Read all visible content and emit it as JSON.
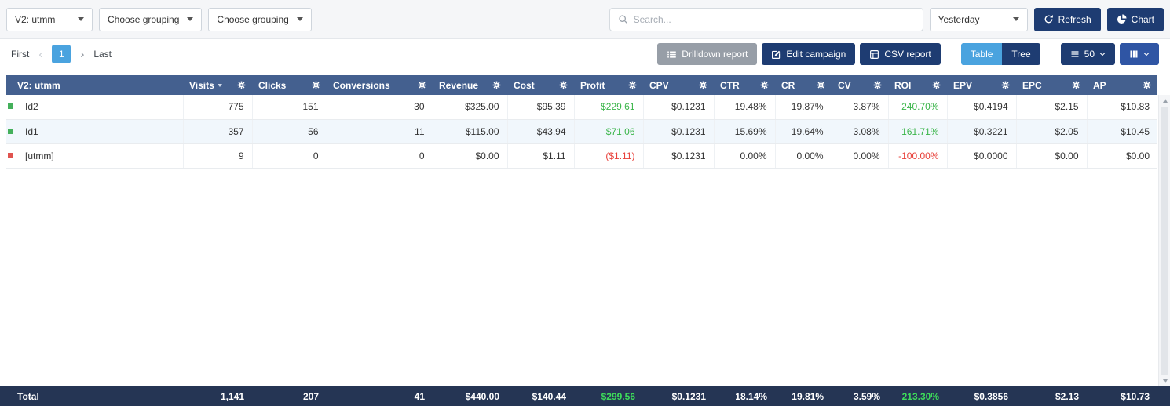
{
  "colors": {
    "header_bg": "#44608f",
    "total_bg": "#253554",
    "navy_button": "#1e3c72",
    "active_blue": "#4aa3df",
    "columns_button": "#2f55a4",
    "positive_green": "#3bb54a",
    "negative_red": "#e8403a",
    "total_green": "#3ddc5a",
    "row_indicator_green": "#44b05b",
    "row_indicator_red": "#e0534f"
  },
  "icons": {
    "search": "magnifier",
    "refresh": "circular-arrow",
    "chart": "pie-chart",
    "drilldown": "list",
    "edit": "pencil-square",
    "csv": "spreadsheet",
    "page_size": "hamburger",
    "columns": "vertical-bars",
    "gear": "gear",
    "sort": "caret-down",
    "select_caret": "caret-down"
  },
  "toolbar": {
    "campaign_select": "V2: utmm",
    "grouping_select_1": "Choose grouping",
    "grouping_select_2": "Choose grouping",
    "search_placeholder": "Search...",
    "date_select": "Yesterday",
    "refresh_label": "Refresh",
    "chart_label": "Chart"
  },
  "pagination": {
    "first": "First",
    "page": "1",
    "last": "Last"
  },
  "actions": {
    "drilldown_label": "Drilldown report",
    "edit_campaign_label": "Edit campaign",
    "csv_label": "CSV report",
    "table_label": "Table",
    "tree_label": "Tree",
    "page_size": "50"
  },
  "table": {
    "name_header": "V2: utmm",
    "profit_col_index": 5,
    "roi_col_index": 10,
    "columns": [
      {
        "label": "Visits",
        "sorted": true
      },
      {
        "label": "Clicks"
      },
      {
        "label": "Conversions"
      },
      {
        "label": "Revenue"
      },
      {
        "label": "Cost"
      },
      {
        "label": "Profit"
      },
      {
        "label": "CPV"
      },
      {
        "label": "CTR"
      },
      {
        "label": "CR"
      },
      {
        "label": "CV"
      },
      {
        "label": "ROI"
      },
      {
        "label": "EPV"
      },
      {
        "label": "EPC"
      },
      {
        "label": "AP"
      }
    ],
    "rows": [
      {
        "status": "green",
        "name": "Id2",
        "values": [
          "775",
          "151",
          "30",
          "$325.00",
          "$95.39",
          "$229.61",
          "$0.1231",
          "19.48%",
          "19.87%",
          "3.87%",
          "240.70%",
          "$0.4194",
          "$2.15",
          "$10.83"
        ]
      },
      {
        "status": "green",
        "name": "Id1",
        "values": [
          "357",
          "56",
          "11",
          "$115.00",
          "$43.94",
          "$71.06",
          "$0.1231",
          "15.69%",
          "19.64%",
          "3.08%",
          "161.71%",
          "$0.3221",
          "$2.05",
          "$10.45"
        ]
      },
      {
        "status": "red",
        "name": "[utmm]",
        "values": [
          "9",
          "0",
          "0",
          "$0.00",
          "$1.11",
          "($1.11)",
          "$0.1231",
          "0.00%",
          "0.00%",
          "0.00%",
          "-100.00%",
          "$0.0000",
          "$0.00",
          "$0.00"
        ]
      }
    ],
    "total": {
      "label": "Total",
      "values": [
        "1,141",
        "207",
        "41",
        "$440.00",
        "$140.44",
        "$299.56",
        "$0.1231",
        "18.14%",
        "19.81%",
        "3.59%",
        "213.30%",
        "$0.3856",
        "$2.13",
        "$10.73"
      ]
    }
  }
}
